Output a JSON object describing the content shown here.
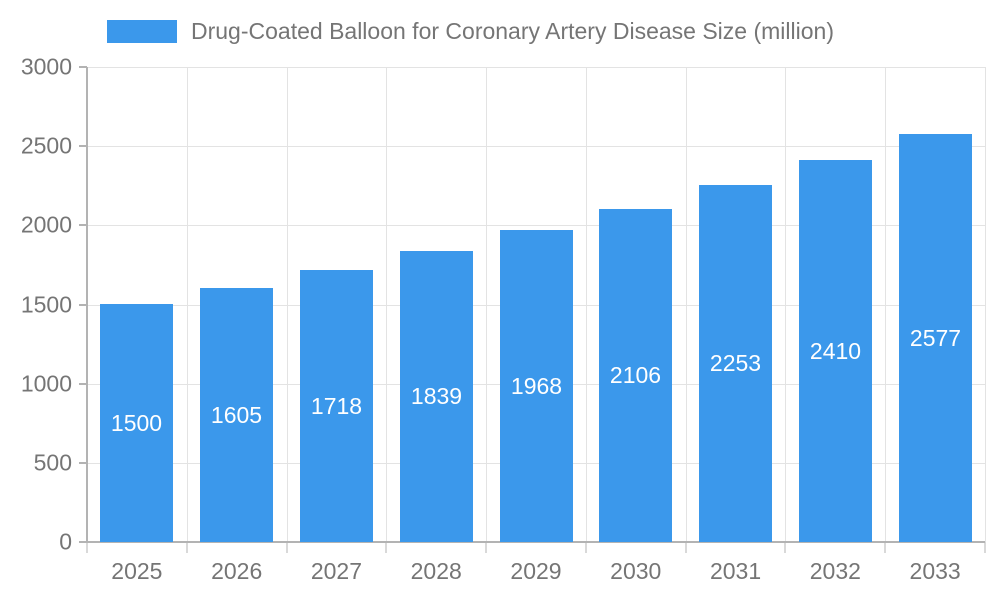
{
  "legend": {
    "label": "Drug-Coated Balloon for Coronary Artery Disease Size (million)"
  },
  "colors": {
    "bar": "#3B98EB",
    "grid": "#e3e3e3",
    "axis": "#b3b3b3",
    "tick_x": "#d9d9d9",
    "text": "#757575",
    "bar_label": "#ffffff",
    "background": "#ffffff"
  },
  "chart_data": {
    "type": "bar",
    "title": "Drug-Coated Balloon for Coronary Artery Disease Size (million)",
    "categories": [
      "2025",
      "2026",
      "2027",
      "2028",
      "2029",
      "2030",
      "2031",
      "2032",
      "2033"
    ],
    "values": [
      1500,
      1605,
      1718,
      1839,
      1968,
      2106,
      2253,
      2410,
      2577
    ],
    "xlabel": "",
    "ylabel": "",
    "ylim": [
      0,
      3000
    ],
    "yticks": [
      0,
      500,
      1000,
      1500,
      2000,
      2500,
      3000
    ],
    "grid": true,
    "legend_position": "top-left",
    "bar_labels_inside": true
  }
}
